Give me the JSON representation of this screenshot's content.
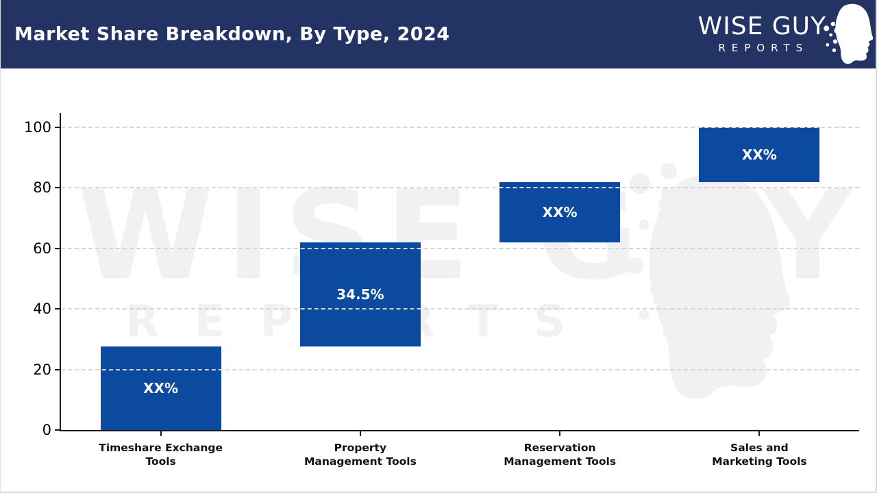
{
  "header": {
    "title": "Market Share Breakdown, By Type, 2024",
    "brand": {
      "name_top": "WISE GUY",
      "name_bottom": "REPORTS"
    }
  },
  "watermark": {
    "line1": "WISE GUY",
    "line2": "REPORTS"
  },
  "colors": {
    "header_bg": "#233363",
    "bar_blue": "#0B4A9E",
    "watermark_gray": "#F1F1F4",
    "gridline_gray": "#D6D6D6",
    "axis_black": "#1A1A1A"
  },
  "chart_data": {
    "type": "bar",
    "subtype": "floating-waterfall",
    "title": "Market Share Breakdown, By Type, 2024",
    "categories": [
      "Timeshare Exchange Tools",
      "Property Management Tools",
      "Reservation Management Tools",
      "Sales and Marketing Tools"
    ],
    "category_lines": [
      [
        "Timeshare Exchange",
        "Tools"
      ],
      [
        "Property",
        "Management Tools"
      ],
      [
        "Reservation",
        "Management Tools"
      ],
      [
        "Sales and",
        "Marketing Tools"
      ]
    ],
    "segments": [
      {
        "category": "Timeshare Exchange Tools",
        "start": 0,
        "end": 27.5,
        "label": "XX%"
      },
      {
        "category": "Property Management Tools",
        "start": 27.5,
        "end": 62,
        "label": "34.5%"
      },
      {
        "category": "Reservation Management Tools",
        "start": 62,
        "end": 82,
        "label": "XX%"
      },
      {
        "category": "Sales and Marketing Tools",
        "start": 82,
        "end": 100,
        "label": "XX%"
      }
    ],
    "ylim": [
      0,
      100
    ],
    "yticks": [
      0,
      20,
      40,
      60,
      80,
      100
    ],
    "xlabel": "",
    "ylabel": "",
    "grid": "horizontal-dashed",
    "legend": "none",
    "bar_label_color": "#FFFFFF"
  }
}
